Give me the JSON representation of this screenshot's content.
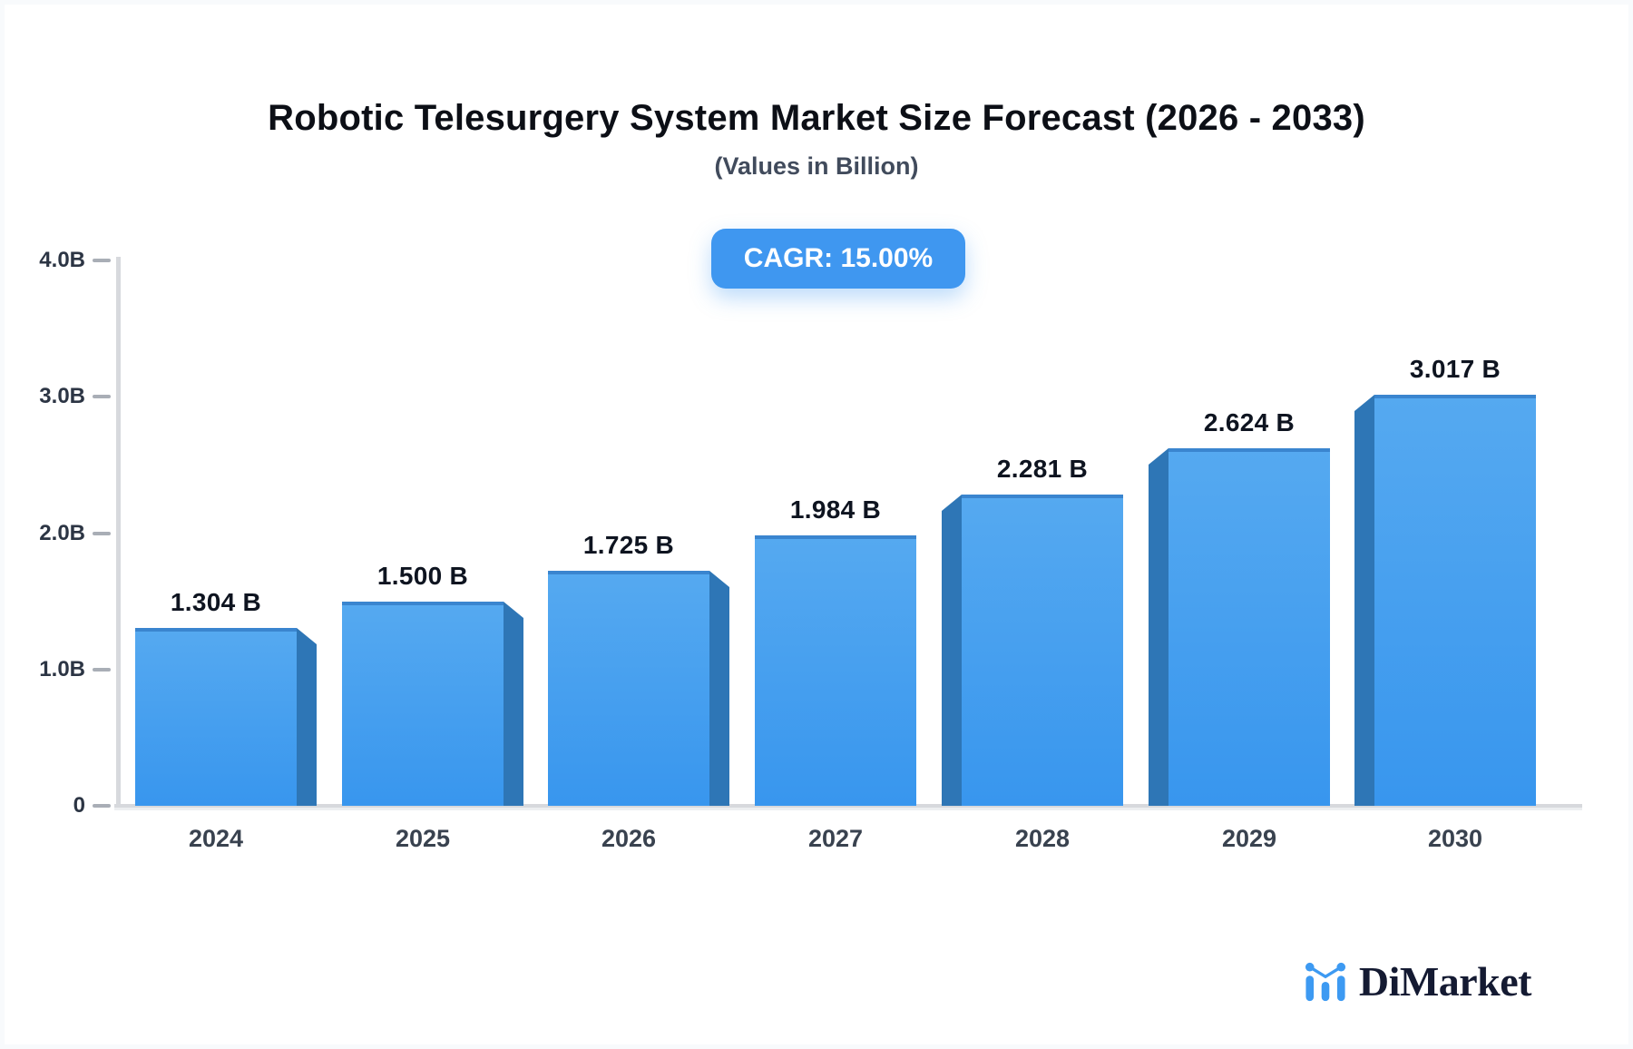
{
  "page": {
    "title": "Robotic Telesurgery System Market Size Forecast (2026 - 2033)",
    "subtitle": "(Values in Billion)",
    "cagr_badge": "CAGR: 15.00%"
  },
  "chart_data": {
    "type": "bar",
    "title": "Robotic Telesurgery System Market Size Forecast (2026 - 2033)",
    "subtitle": "(Values in Billion)",
    "cagr_percent": "15.00%",
    "unit": "Billion",
    "categories": [
      "2024",
      "2025",
      "2026",
      "2027",
      "2028",
      "2029",
      "2030"
    ],
    "values": [
      1.304,
      1.5,
      1.725,
      1.984,
      2.281,
      2.624,
      3.017
    ],
    "value_labels": [
      "1.304 B",
      "1.500 B",
      "1.725 B",
      "1.984 B",
      "2.281 B",
      "2.624 B",
      "3.017 B"
    ],
    "ylim": [
      0,
      4.0
    ],
    "yticks": [
      {
        "label": "4.0B",
        "value": 4.0
      },
      {
        "label": "3.0B",
        "value": 3.0
      },
      {
        "label": "2.0B",
        "value": 2.0
      },
      {
        "label": "1.0B",
        "value": 1.0
      },
      {
        "label": "0",
        "value": 0
      }
    ],
    "grid": "off",
    "legend": "none",
    "bar_3d_sides": [
      "right",
      "right",
      "right",
      "none",
      "left",
      "left",
      "left"
    ],
    "colors": {
      "bar_face_top": "#55a9f0",
      "bar_face_bottom": "#3896ee",
      "bar_cap": "#3a85cf",
      "bar_side": "#2e76b6",
      "badge_bg": "#3f97f0",
      "axis_line": "#d7d9dd",
      "logo_blue": "#3d9af2",
      "logo_text_color": "#141a32"
    }
  },
  "logo": {
    "text": "DiMarket",
    "icon": "bar-line-chart-logo-icon"
  }
}
